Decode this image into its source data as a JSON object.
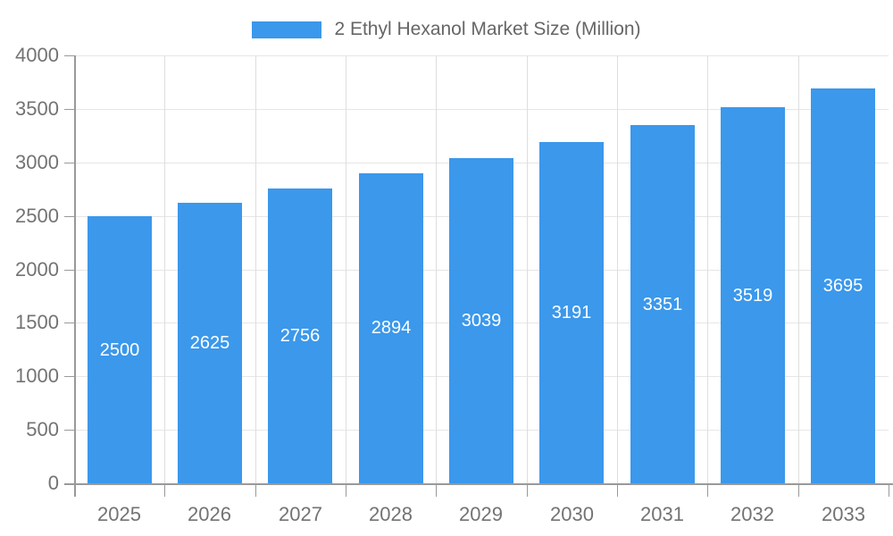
{
  "legend": {
    "label": "2 Ethyl Hexanol Market Size (Million)"
  },
  "chart_data": {
    "type": "bar",
    "title": "2 Ethyl Hexanol Market Size (Million)",
    "categories": [
      "2025",
      "2026",
      "2027",
      "2028",
      "2029",
      "2030",
      "2031",
      "2032",
      "2033"
    ],
    "values": [
      2500,
      2625,
      2756,
      2894,
      3039,
      3191,
      3351,
      3519,
      3695
    ],
    "xlabel": "",
    "ylabel": "",
    "ylim": [
      0,
      4000
    ],
    "y_tick_step": 500,
    "y_tick_labels": [
      "0",
      "500",
      "1000",
      "1500",
      "2000",
      "2500",
      "3000",
      "3500",
      "4000"
    ],
    "grid": "on",
    "legend_position": "top-center",
    "value_labels": "inside-center",
    "colors": {
      "bar": "#3B98EB",
      "value_label": "#FFFFFF",
      "axis": "#999999",
      "gridline_h": "#E6E6E6",
      "gridline_v": "#DEDEDE",
      "tick_label": "#737373",
      "legend_text": "#666666",
      "background": "#FFFFFF"
    }
  }
}
